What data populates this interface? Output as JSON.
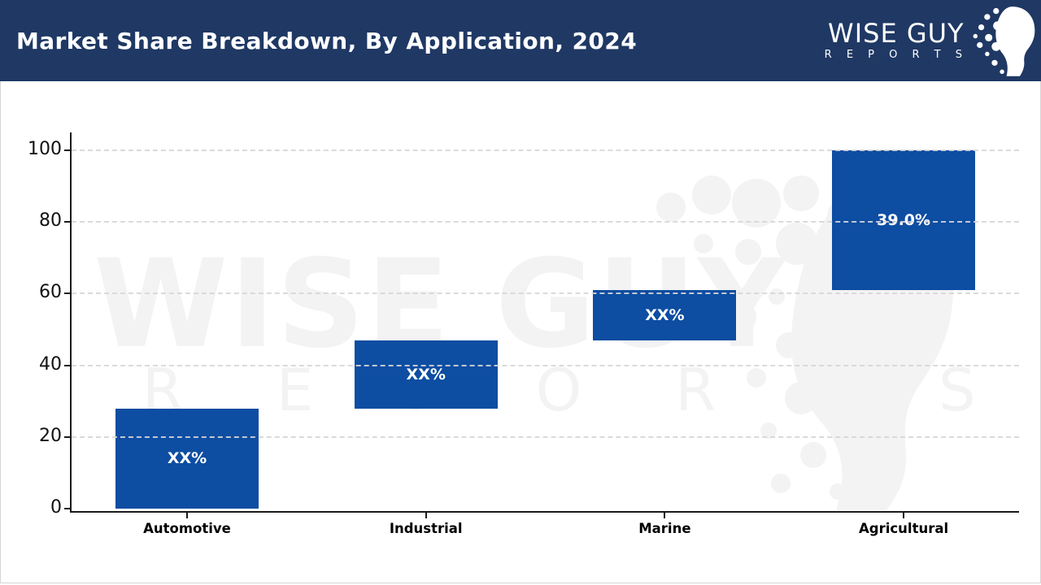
{
  "header": {
    "title": "Market Share Breakdown, By Application, 2024",
    "logo": {
      "name": "WISE GUY",
      "tagline": "R E P O R T S"
    }
  },
  "watermark": {
    "line1": "WISE GUY",
    "line2": "R E P O R T S"
  },
  "colors": {
    "header_bg": "#1f3864",
    "bar_fill": "#0d4da2",
    "bar_label": "#ffffff",
    "axis": "#1a1a1a",
    "gridline": "#d9d9d9",
    "tick_label": "#111111",
    "watermark": "#f3f3f3"
  },
  "chart_data": {
    "type": "bar",
    "subtype": "waterfall-floating-bars",
    "title": "Market Share Breakdown, By Application, 2024",
    "categories": [
      "Automotive",
      "Industrial",
      "Marine",
      "Agricultural"
    ],
    "bars": [
      {
        "category": "Automotive",
        "start": 0,
        "end": 28,
        "value_label": "XX%"
      },
      {
        "category": "Industrial",
        "start": 28,
        "end": 47,
        "value_label": "XX%"
      },
      {
        "category": "Marine",
        "start": 47,
        "end": 61,
        "value_label": "XX%"
      },
      {
        "category": "Agricultural",
        "start": 61,
        "end": 100,
        "value_label": "39.0%"
      }
    ],
    "xlabel": "",
    "ylabel": "",
    "ylim": [
      0,
      100
    ],
    "yticks": [
      0,
      20,
      40,
      60,
      80,
      100
    ],
    "grid": "horizontal-dashed",
    "legend": null
  }
}
